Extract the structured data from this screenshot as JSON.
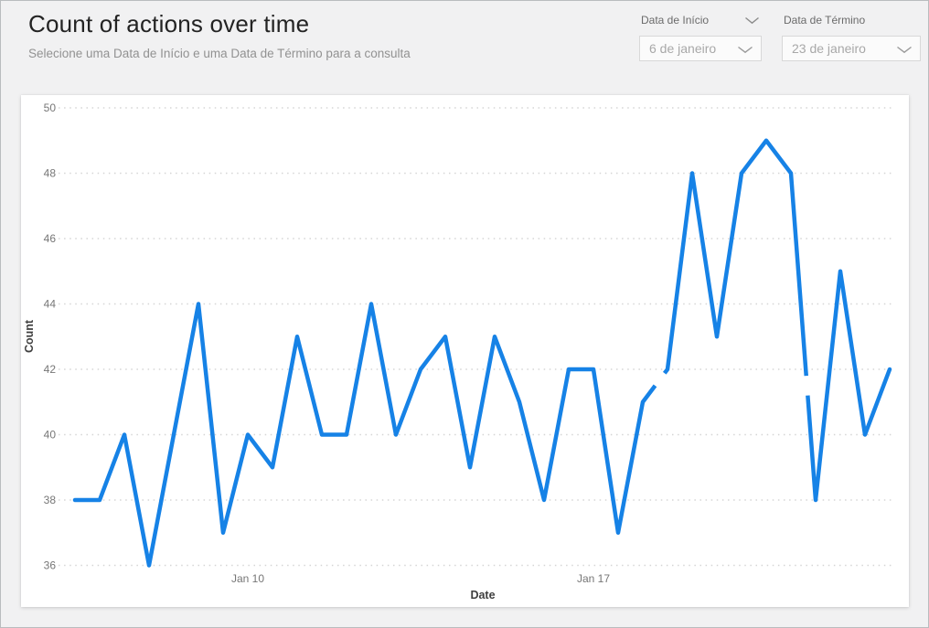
{
  "header": {
    "title": "Count of actions over time",
    "subtitle": "Selecione uma Data de Início e uma Data de Término para a consulta"
  },
  "slicers": [
    {
      "label": "Data de Início",
      "value": "6 de janeiro",
      "chevron_icon": "chevron-down-icon"
    },
    {
      "label": "Data de Término",
      "value": "23 de janeiro",
      "chevron_icon": "chevron-down-icon"
    }
  ],
  "chart_data": {
    "type": "line",
    "title": "",
    "xlabel": "Date",
    "ylabel": "Count",
    "ylim": [
      36,
      50
    ],
    "y_ticks": [
      36,
      38,
      40,
      42,
      44,
      46,
      48,
      50
    ],
    "x_tick_labels": [
      {
        "label": "Jan 10",
        "index": 7
      },
      {
        "label": "Jan 17",
        "index": 21
      }
    ],
    "points_per_day": 2,
    "values": [
      38,
      38,
      40,
      36,
      40,
      44,
      37,
      40,
      39,
      43,
      40,
      40,
      44,
      40,
      42,
      43,
      39,
      43,
      41,
      38,
      42,
      42,
      37,
      41,
      42,
      48,
      43,
      48,
      49,
      48,
      38,
      45,
      40,
      42
    ],
    "line_color": "#1682e6",
    "grid_color": "#d5d5d5",
    "grid_style": "dotted",
    "legend": "none",
    "line_gaps": [
      {
        "segment_index": 23,
        "from": 0.5,
        "to": 0.88
      },
      {
        "segment_index": 29,
        "from": 0.62,
        "to": 0.68
      }
    ]
  }
}
